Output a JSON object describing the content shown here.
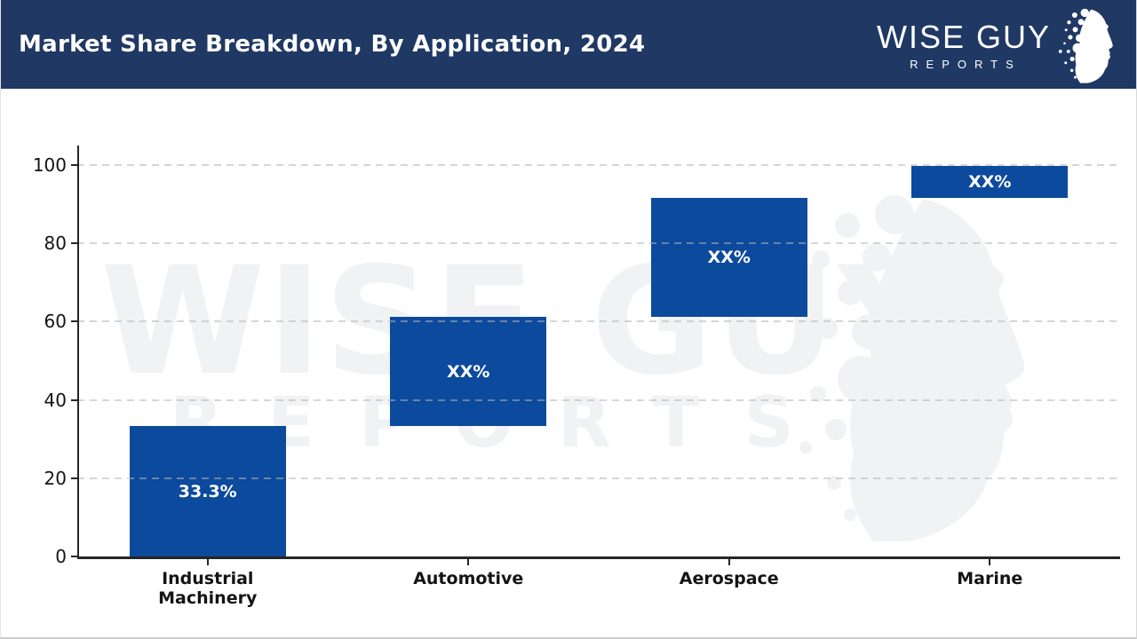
{
  "header": {
    "title": "Market Share Breakdown, By Application, 2024",
    "bg_color": "#1f3864",
    "logo": {
      "line1": "WISE GUY",
      "line2": "REPORTS"
    }
  },
  "watermark": {
    "line1": "WISE GUY",
    "line2": "REPORTS",
    "color": "#f1f2f4"
  },
  "chart_data": {
    "type": "bar",
    "subtype": "waterfall",
    "title": "Market Share Breakdown, By Application, 2024",
    "categories": [
      "Industrial Machinery",
      "Automotive",
      "Aerospace",
      "Marine"
    ],
    "segments": [
      {
        "category": "Industrial Machinery",
        "start": 0,
        "end": 33.3,
        "label": "33.3%"
      },
      {
        "category": "Automotive",
        "start": 33.3,
        "end": 61.2,
        "label": "XX%"
      },
      {
        "category": "Aerospace",
        "start": 61.2,
        "end": 91.6,
        "label": "XX%"
      },
      {
        "category": "Marine",
        "start": 91.6,
        "end": 99.7,
        "label": "XX%"
      }
    ],
    "values_estimated": [
      33.3,
      27.9,
      30.4,
      8.1
    ],
    "y_ticks": [
      0,
      20,
      40,
      60,
      80,
      100
    ],
    "ylim": [
      0,
      104.8
    ],
    "xlabel": "",
    "ylabel": "",
    "legend": "none",
    "grid": "horizontal-dashed",
    "bar_color": "#0c4a9d",
    "grid_color": "rgba(180,180,180,0.55)",
    "axis_color": "#262626",
    "label_color_inside": "#ffffff"
  }
}
